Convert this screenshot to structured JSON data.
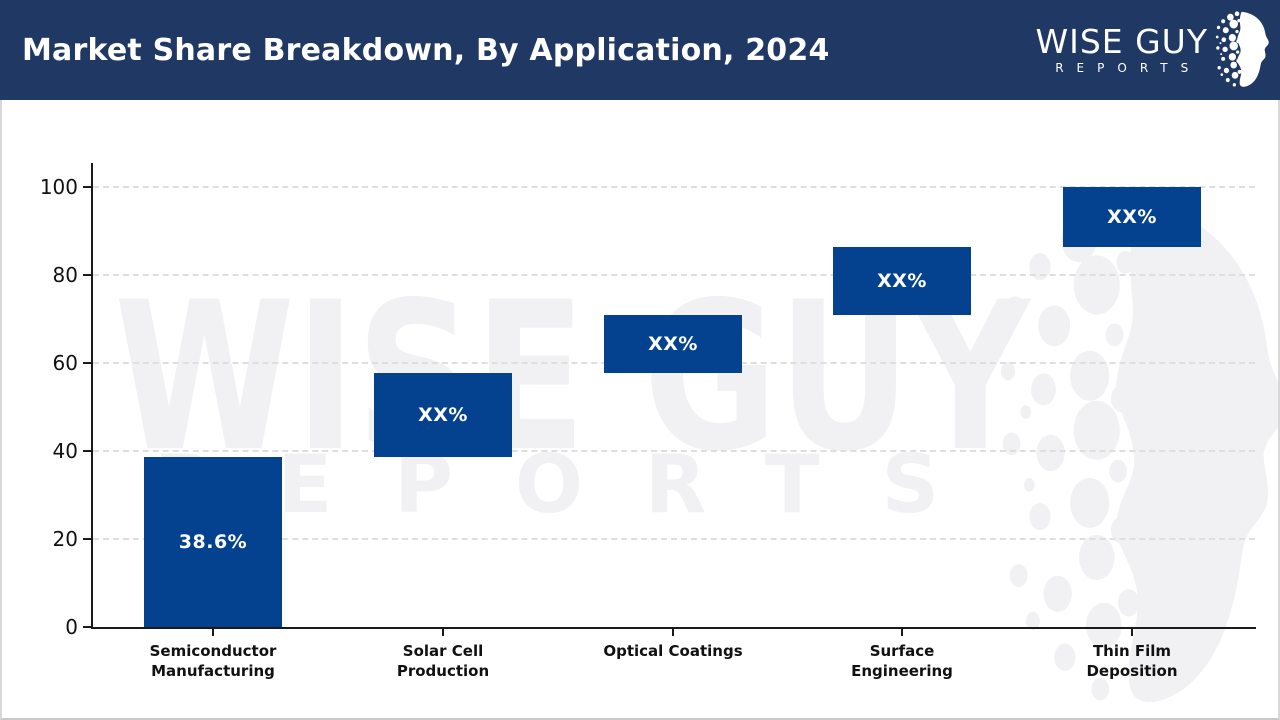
{
  "header": {
    "title": "Market Share Breakdown, By Application, 2024",
    "logo": {
      "line1": "WISE GUY",
      "line2": "REPORTS"
    }
  },
  "watermark": {
    "line1": "WISE GUY",
    "line2": "REPORTS"
  },
  "colors": {
    "header_bg": "#203864",
    "bar": "#04428f",
    "bar_label": "#ffffff",
    "axis": "#1a1a1a",
    "grid": "#dedede",
    "tick_label": "#111111",
    "watermark": "#f1f1f4"
  },
  "chart_data": {
    "type": "bar",
    "subtype": "waterfall",
    "title": "Market Share Breakdown, By Application, 2024",
    "xlabel": "",
    "ylabel": "",
    "ylim": [
      0,
      100
    ],
    "yticks": [
      0,
      20,
      40,
      60,
      80,
      100
    ],
    "grid": "horizontal-dashed",
    "legend": "none",
    "categories": [
      [
        "Semiconductor",
        "Manufacturing"
      ],
      [
        "Solar Cell",
        "Production"
      ],
      [
        "Optical Coatings"
      ],
      [
        "Surface",
        "Engineering"
      ],
      [
        "Thin Film",
        "Deposition"
      ]
    ],
    "segments": [
      {
        "start": 0,
        "end": 38.6,
        "value": 38.6,
        "label": "38.6%"
      },
      {
        "start": 38.6,
        "end": 57.7,
        "value": 19.1,
        "label": "XX%"
      },
      {
        "start": 57.7,
        "end": 71.0,
        "value": 13.3,
        "label": "XX%"
      },
      {
        "start": 71.0,
        "end": 86.4,
        "value": 15.4,
        "label": "XX%"
      },
      {
        "start": 86.4,
        "end": 100.0,
        "value": 13.6,
        "label": "XX%"
      }
    ]
  }
}
